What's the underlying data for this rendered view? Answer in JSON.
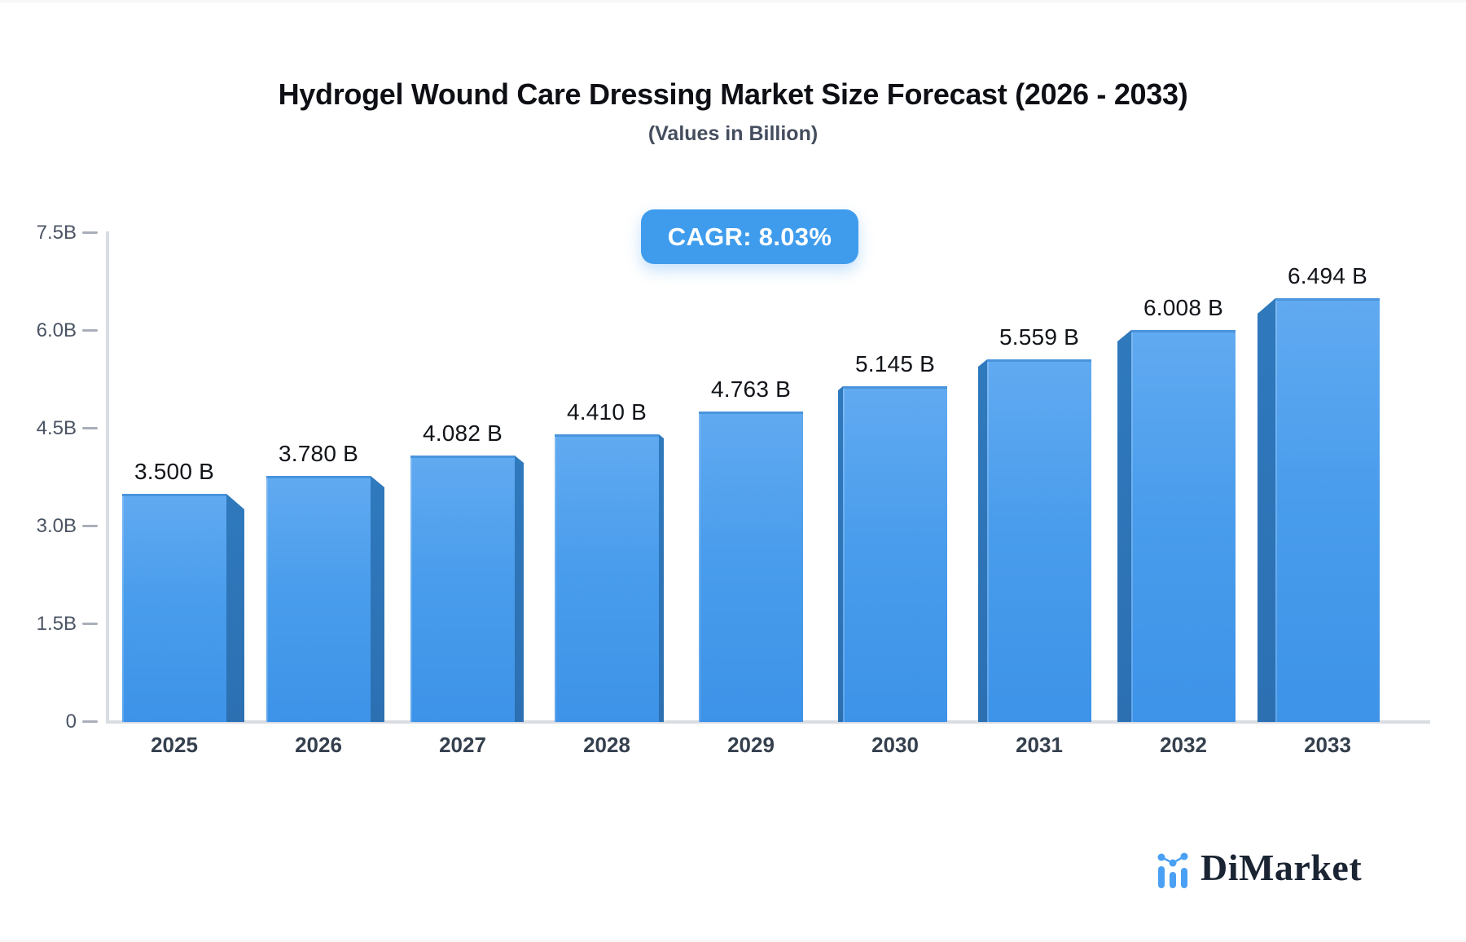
{
  "title": "Hydrogel Wound Care Dressing Market Size Forecast (2026 - 2033)",
  "subtitle": "(Values in Billion)",
  "badge": {
    "label": "CAGR: 8.03%"
  },
  "logo": {
    "brand": "DiMarket",
    "icon": "mini-bar-chart-logo-icon"
  },
  "colors": {
    "accent_blue": "#3f9ced",
    "bar_face_top": "#61aaf1",
    "bar_face_bottom": "#3d93e8",
    "bar_side": "#2d74b8",
    "axis_gray": "#d9dce2",
    "logo_navy": "#1a2433",
    "logo_blue": "#4aa0f4"
  },
  "chart_data": {
    "type": "bar",
    "title": "Hydrogel Wound Care Dressing Market Size Forecast (2026 - 2033)",
    "subtitle": "(Values in Billion)",
    "annotation": "CAGR: 8.03%",
    "categories": [
      "2025",
      "2026",
      "2027",
      "2028",
      "2029",
      "2030",
      "2031",
      "2032",
      "2033"
    ],
    "values": [
      3.5,
      3.78,
      4.082,
      4.41,
      4.763,
      5.145,
      5.559,
      6.008,
      6.494
    ],
    "value_labels": [
      "3.500 B",
      "3.780 B",
      "4.082 B",
      "4.410 B",
      "4.763 B",
      "5.145 B",
      "5.559 B",
      "6.008 B",
      "6.494 B"
    ],
    "xlabel": "",
    "ylabel": "",
    "ylim": [
      0,
      7.5
    ],
    "yticks": [
      {
        "value": 0,
        "label": "0"
      },
      {
        "value": 1.5,
        "label": "1.5B"
      },
      {
        "value": 3.0,
        "label": "3.0B"
      },
      {
        "value": 4.5,
        "label": "4.5B"
      },
      {
        "value": 6.0,
        "label": "6.0B"
      },
      {
        "value": 7.5,
        "label": "7.5B"
      }
    ],
    "grid": false,
    "legend": false,
    "bar_style": "3d-perspective"
  }
}
